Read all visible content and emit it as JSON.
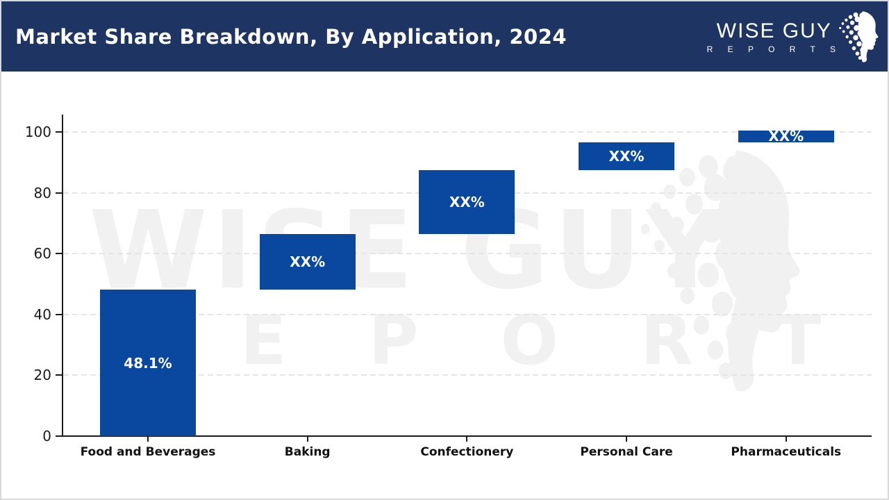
{
  "header": {
    "title": "Market Share Breakdown, By Application, 2024",
    "logo_line1": "WISE GUY",
    "logo_line2": "R E P O R T S"
  },
  "watermark": {
    "line1": "WISE GUY",
    "line2": "R E P O R T S"
  },
  "colors": {
    "header_bg": "#1E3462",
    "bar": "#0A48A0",
    "bar_label": "#FFFFFF",
    "grid": "#E5E5E5",
    "axis": "#1A1A1A",
    "watermark": "#F1F1F1"
  },
  "chart_data": {
    "type": "bar",
    "subtype": "waterfall-cumulative",
    "title": "Market Share Breakdown, By Application, 2024",
    "categories": [
      "Food and Beverages",
      "Baking",
      "Confectionery",
      "Personal Care",
      "Pharmaceuticals"
    ],
    "segments": [
      {
        "category": "Food and Beverages",
        "start": 0,
        "end": 48.1,
        "label": "48.1%"
      },
      {
        "category": "Baking",
        "start": 48.1,
        "end": 66.4,
        "label": "XX%"
      },
      {
        "category": "Confectionery",
        "start": 66.4,
        "end": 87.4,
        "label": "XX%"
      },
      {
        "category": "Personal Care",
        "start": 87.4,
        "end": 96.6,
        "label": "XX%"
      },
      {
        "category": "Pharmaceuticals",
        "start": 96.6,
        "end": 100.5,
        "label": "XX%"
      }
    ],
    "y_ticks": [
      0,
      20,
      40,
      60,
      80,
      100
    ],
    "ylim": [
      0,
      105
    ],
    "grid": "dashed-horizontal",
    "legend": false
  }
}
